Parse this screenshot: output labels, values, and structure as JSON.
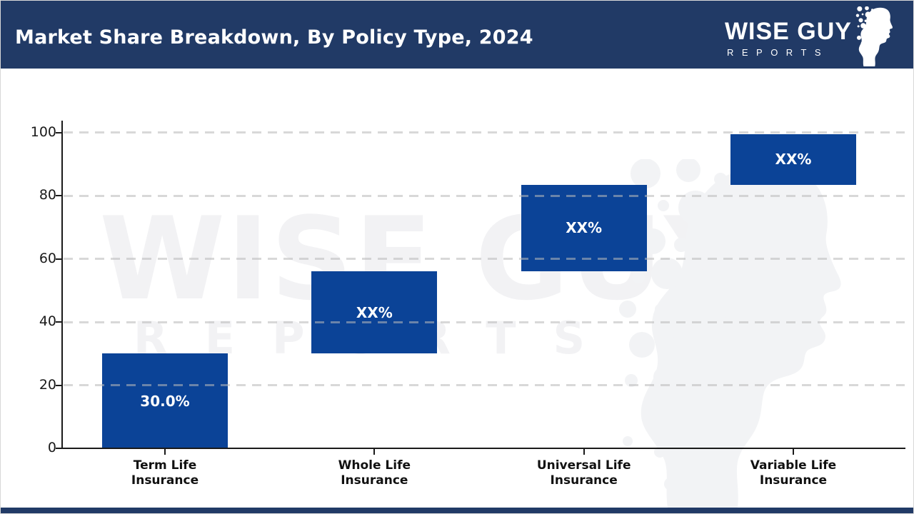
{
  "header": {
    "title": "Market Share Breakdown, By Policy Type, 2024",
    "background_color": "#213a66",
    "logo": {
      "wordmark": "WISE GUY",
      "subtext": "REPORTS"
    }
  },
  "watermark": {
    "wordmark": "WISE GUY",
    "subtext": "REPORTS"
  },
  "footer": {
    "background_color": "#213a66"
  },
  "chart_data": {
    "type": "bar",
    "variant": "floating-waterfall",
    "title": "Market Share Breakdown, By Policy Type, 2024",
    "categories": [
      "Term Life Insurance",
      "Whole Life Insurance",
      "Universal Life Insurance",
      "Variable Life Insurance"
    ],
    "categories_lines": [
      [
        "Term Life",
        "Insurance"
      ],
      [
        "Whole Life",
        "Insurance"
      ],
      [
        "Universal Life",
        "Insurance"
      ],
      [
        "Variable Life",
        "Insurance"
      ]
    ],
    "bars": [
      {
        "start": 0,
        "end": 30,
        "label": "30.0%"
      },
      {
        "start": 30,
        "end": 56,
        "label": "XX%"
      },
      {
        "start": 56,
        "end": 83.5,
        "label": "XX%"
      },
      {
        "start": 83.5,
        "end": 99.5,
        "label": "XX%"
      }
    ],
    "xlabel": "",
    "ylabel": "",
    "ylim": [
      0,
      100
    ],
    "yticks": [
      0,
      20,
      40,
      60,
      80,
      100
    ],
    "grid": "dashed horizontal",
    "legend": "none",
    "bar_color": "#0b4397",
    "bar_label_color": "#ffffff"
  }
}
